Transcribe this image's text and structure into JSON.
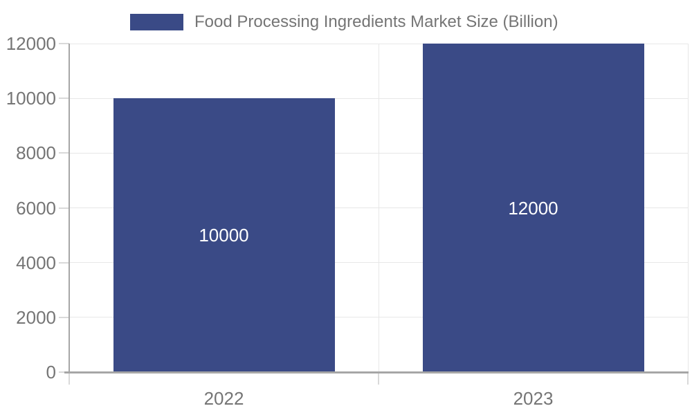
{
  "legend": {
    "label": "Food Processing Ingredients Market Size (Billion)",
    "position": "top"
  },
  "chart_data": {
    "type": "bar",
    "title": "Food Processing Ingredients Market Size (Billion)",
    "categories": [
      "2022",
      "2023"
    ],
    "values": [
      10000,
      12000
    ],
    "bar_value_labels": [
      "10000",
      "12000"
    ],
    "series": [
      {
        "name": "Food Processing Ingredients Market Size (Billion)",
        "values": [
          10000,
          12000
        ]
      }
    ],
    "xlabel": "",
    "ylabel": "",
    "ylim": [
      0,
      12000
    ],
    "yticks": [
      0,
      2000,
      4000,
      6000,
      8000,
      10000,
      12000
    ],
    "grid": true,
    "legend_position": "top"
  },
  "colors": {
    "bar": "#3a4a86",
    "grid": "#e7e7e7",
    "tick": "#d9d9d9",
    "axis": "#a6a6a6",
    "text": "#757575",
    "value_label": "#ffffff",
    "background": "#ffffff"
  }
}
